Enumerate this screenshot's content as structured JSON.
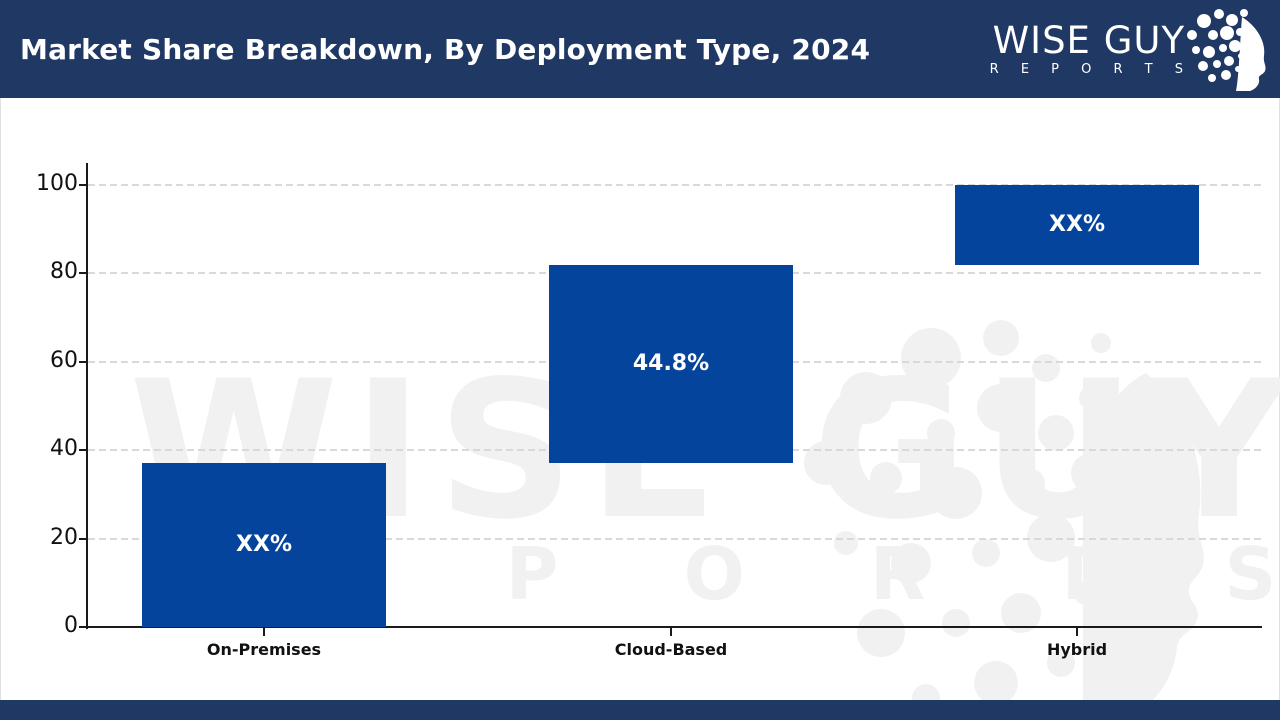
{
  "header": {
    "title": "Market Share Breakdown, By Deployment Type, 2024",
    "logo": {
      "line1": "WISE GUY",
      "line2": "R E P O R T S"
    }
  },
  "watermark": {
    "line1": "WISE GUY",
    "line2": "R E P O R T S",
    "face_icon": "dotted-head-profile"
  },
  "chart_data": {
    "type": "bar",
    "subtype": "waterfall",
    "title": "Market Share Breakdown, By Deployment Type, 2024",
    "categories": [
      "On-Premises",
      "Cloud-Based",
      "Hybrid"
    ],
    "bars": [
      {
        "category": "On-Premises",
        "start": 0,
        "end": 37.2,
        "label": "XX%"
      },
      {
        "category": "Cloud-Based",
        "start": 37.2,
        "end": 82.0,
        "label": "44.8%"
      },
      {
        "category": "Hybrid",
        "start": 82.0,
        "end": 100.0,
        "label": "XX%"
      }
    ],
    "yticks": [
      0,
      20,
      40,
      60,
      80,
      100
    ],
    "ylim": [
      0,
      105
    ],
    "xlabel": "",
    "ylabel": "",
    "grid": "horizontal-dashed",
    "legend": "none"
  },
  "colors": {
    "header_bg": "#1f3864",
    "footer_bg": "#1f3864",
    "bar_fill": "#05449c",
    "bar_label": "#ffffff",
    "gridline": "#d9d9d9",
    "axis": "#1a1a1a",
    "tick_text": "#111111",
    "watermark": "#f1f1f1"
  }
}
